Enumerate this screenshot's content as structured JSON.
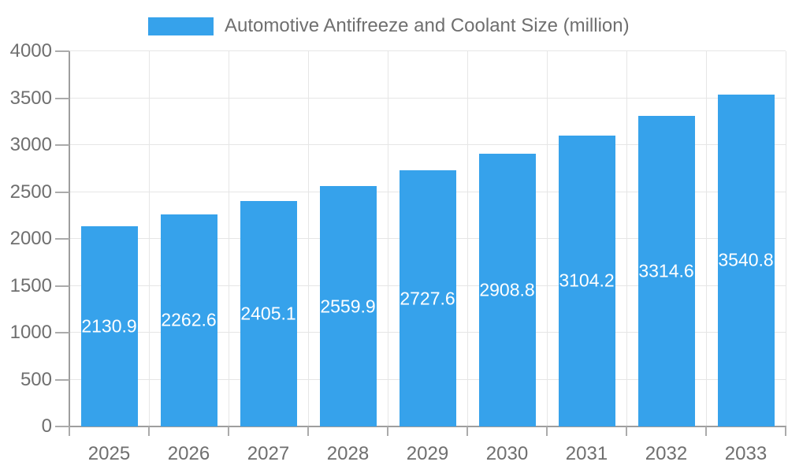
{
  "legend": {
    "label": "Automotive Antifreeze and Coolant Size (million)"
  },
  "chart_data": {
    "type": "bar",
    "title": "Automotive Antifreeze and Coolant Size (million)",
    "categories": [
      "2025",
      "2026",
      "2027",
      "2028",
      "2029",
      "2030",
      "2031",
      "2032",
      "2033"
    ],
    "series": [
      {
        "name": "Automotive Antifreeze and Coolant Size (million)",
        "values": [
          2130.9,
          2262.6,
          2405.1,
          2559.9,
          2727.6,
          2908.8,
          3104.2,
          3314.6,
          3540.8
        ]
      }
    ],
    "xlabel": "",
    "ylabel": "",
    "ylim": [
      0,
      4000
    ],
    "yticks": [
      0,
      500,
      1000,
      1500,
      2000,
      2500,
      3000,
      3500,
      4000
    ],
    "grid": true,
    "legend_position": "top",
    "value_labels": "inside-center",
    "colors": {
      "bar": "#36a2eb",
      "value_label": "#ffffff",
      "axis_text": "#6f6f6f",
      "grid_line": "#e6e6e6",
      "axis_line": "#9e9e9e",
      "tick_line": "#ababab"
    }
  }
}
